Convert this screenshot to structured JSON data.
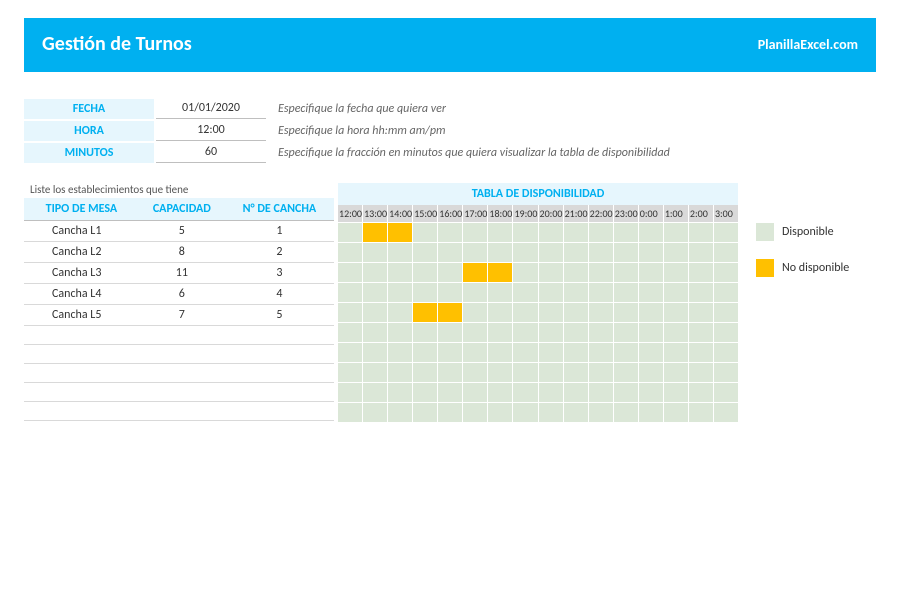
{
  "colors": {
    "banner_bg": "#00b0f0",
    "accent_text": "#00b0f0",
    "label_bg": "#e6f6fd",
    "avail_heading_bg": "#e6f6fd",
    "time_header_bg": "#d9d9d9",
    "avail_bg": "#dbe7d7",
    "unavail_bg": "#ffc000",
    "row_border": "#ffffff"
  },
  "banner": {
    "title": "Gestión de Turnos",
    "brand": "PlanillaExcel.com"
  },
  "params": [
    {
      "label": "FECHA",
      "value": "01/01/2020",
      "hint": "Especifique la fecha que quiera ver"
    },
    {
      "label": "HORA",
      "value": "12:00",
      "hint": "Especifique la hora hh:mm am/pm"
    },
    {
      "label": "MINUTOS",
      "value": "60",
      "hint": "Especifique la fracción en minutos que quiera visualizar la tabla de disponibilidad"
    }
  ],
  "left": {
    "list_hint": "Liste los establecimientos que tiene",
    "headers": [
      "TIPO DE MESA",
      "CAPACIDAD",
      "N° DE CANCHA"
    ],
    "rows": [
      {
        "name": "Cancha L1",
        "capacity": "5",
        "num": "1"
      },
      {
        "name": "Cancha L2",
        "capacity": "8",
        "num": "2"
      },
      {
        "name": "Cancha L3",
        "capacity": "11",
        "num": "3"
      },
      {
        "name": "Cancha L4",
        "capacity": "6",
        "num": "4"
      },
      {
        "name": "Cancha L5",
        "capacity": "7",
        "num": "5"
      },
      {
        "name": "",
        "capacity": "",
        "num": ""
      },
      {
        "name": "",
        "capacity": "",
        "num": ""
      },
      {
        "name": "",
        "capacity": "",
        "num": ""
      },
      {
        "name": "",
        "capacity": "",
        "num": ""
      },
      {
        "name": "",
        "capacity": "",
        "num": ""
      }
    ]
  },
  "availability": {
    "heading": "TABLA DE DISPONIBILIDAD",
    "times": [
      "12:00",
      "13:00",
      "14:00",
      "15:00",
      "16:00",
      "17:00",
      "18:00",
      "19:00",
      "20:00",
      "21:00",
      "22:00",
      "23:00",
      "0:00",
      "1:00",
      "2:00",
      "3:00"
    ],
    "row_count": 10,
    "unavailable": [
      {
        "row": 0,
        "col": 1
      },
      {
        "row": 0,
        "col": 2
      },
      {
        "row": 2,
        "col": 5
      },
      {
        "row": 2,
        "col": 6
      },
      {
        "row": 4,
        "col": 3
      },
      {
        "row": 4,
        "col": 4
      }
    ]
  },
  "legend": {
    "available": "Disponible",
    "unavailable": "No disponible"
  }
}
